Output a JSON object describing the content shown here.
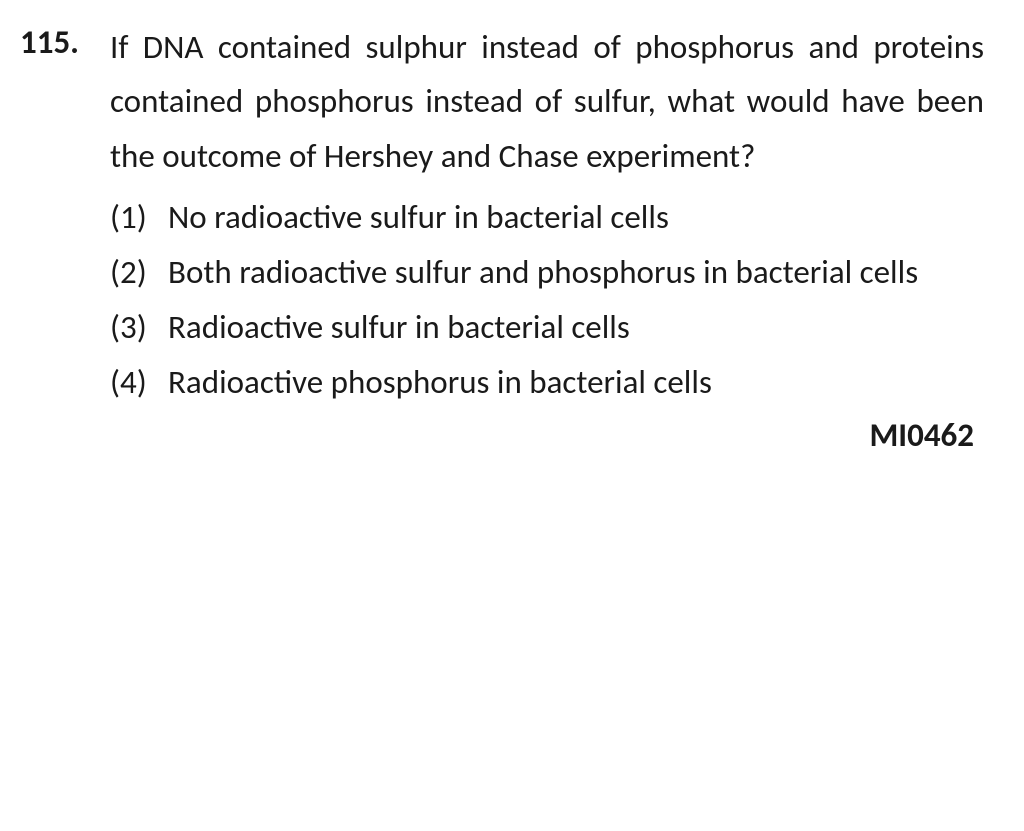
{
  "question": {
    "number": "115.",
    "stem": "If DNA contained sulphur instead of phosphorus and proteins contained phosphorus instead of sulfur, what would have been the outcome of Hershey and Chase experiment?",
    "options": [
      {
        "label": "(1)",
        "text": "No radioactive sulfur in bacterial cells"
      },
      {
        "label": "(2)",
        "text": "Both radioactive sulfur and phosphorus in bacterial cells"
      },
      {
        "label": "(3)",
        "text": "Radioactive sulfur in bacterial cells"
      },
      {
        "label": "(4)",
        "text": "Radioactive phosphorus in bacterial cells"
      }
    ],
    "code": "MI0462"
  },
  "style": {
    "text_color": "#1a1a1a",
    "background_color": "#ffffff",
    "font_family": "Calibri",
    "number_fontsize": 33,
    "stem_fontsize": 33,
    "option_fontsize": 33,
    "code_fontsize": 33,
    "number_weight": 700,
    "code_weight": 700,
    "line_height": 1.65
  }
}
